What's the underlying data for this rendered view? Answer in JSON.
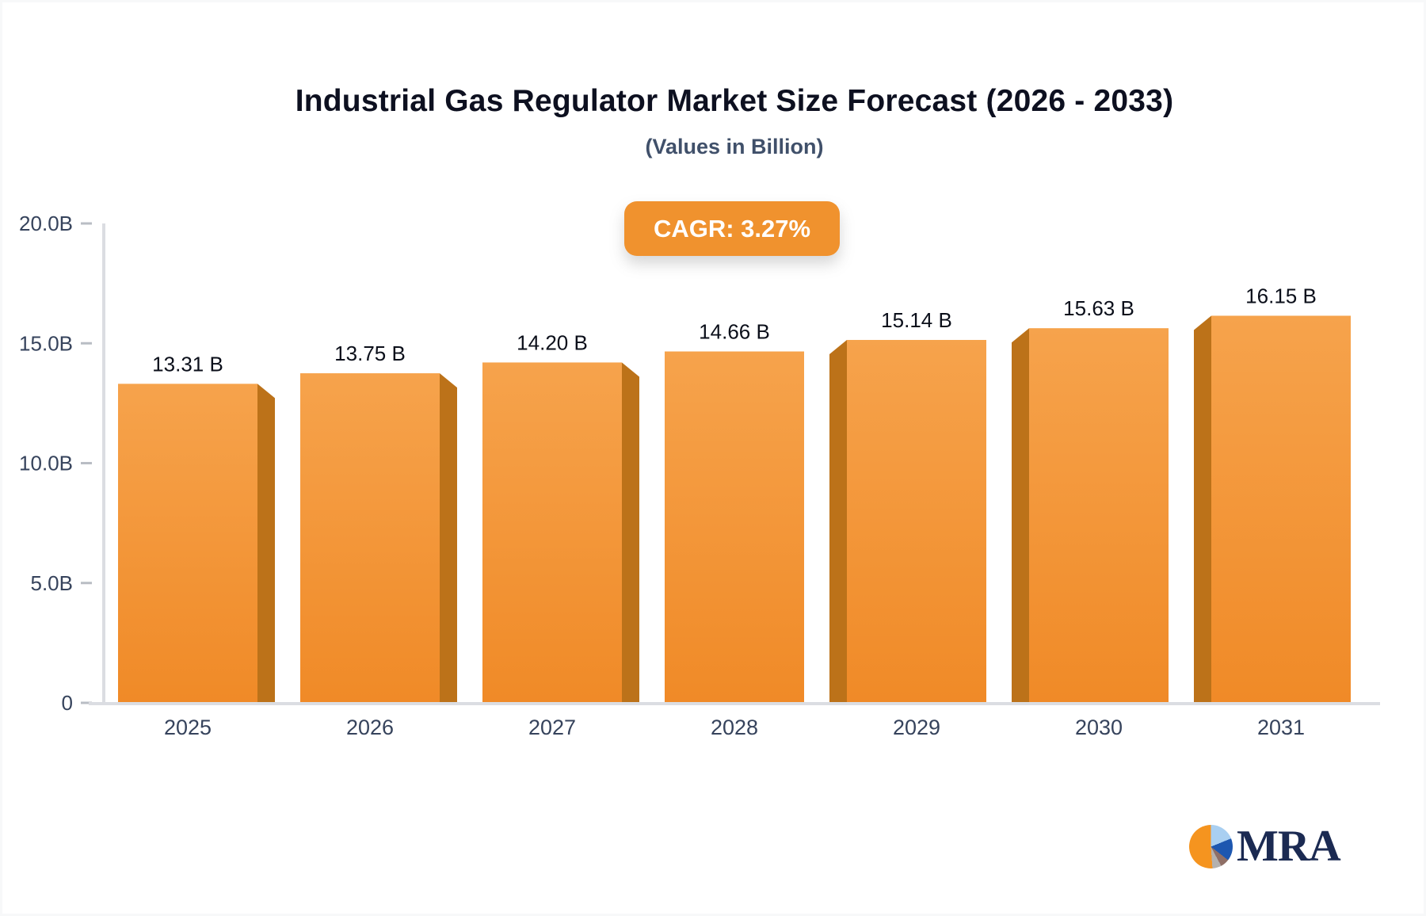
{
  "header": {
    "title": "Industrial Gas Regulator Market Size Forecast (2026 - 2033)",
    "subtitle": "(Values in Billion)"
  },
  "badge": {
    "label": "CAGR: 3.27%",
    "bg_color": "#F0922E",
    "text_color": "#FFFFFF"
  },
  "chart_data": {
    "type": "bar",
    "title": "Industrial Gas Regulator Market Size Forecast (2026 - 2033)",
    "subtitle": "(Values in Billion)",
    "cagr": "3.27%",
    "categories": [
      "2025",
      "2026",
      "2027",
      "2028",
      "2029",
      "2030",
      "2031"
    ],
    "values": [
      13.31,
      13.75,
      14.2,
      14.66,
      15.14,
      15.63,
      16.15
    ],
    "value_labels": [
      "13.31 B",
      "13.75 B",
      "14.20 B",
      "14.66 B",
      "15.14 B",
      "15.63 B",
      "16.15 B"
    ],
    "unit": "Billion",
    "xlabel": "",
    "ylabel": "",
    "ylim": [
      0,
      20
    ],
    "y_ticks": [
      0,
      5,
      10,
      15,
      20
    ],
    "y_tick_labels": [
      "0",
      "5.0B",
      "10.0B",
      "15.0B",
      "20.0B"
    ],
    "grid": false,
    "legend": false,
    "style_3d": true,
    "bar_colors": {
      "face_top": "#F6A34C",
      "face_bottom": "#F08A27",
      "side": "#BC7219"
    },
    "axis_line_color": "#DBDDE2",
    "tick_mark_color": "#B9BDC4",
    "axis_text_color": "#36435C",
    "value_label_color": "#0B0F1A"
  },
  "logo": {
    "text": "MRA",
    "text_color": "#1B2A52",
    "pie_colors": {
      "orange": "#F5941F",
      "light_blue": "#A9CFF1",
      "blue": "#1D57B0",
      "brown": "#8F6F66",
      "gray": "#B4B1AE"
    }
  }
}
